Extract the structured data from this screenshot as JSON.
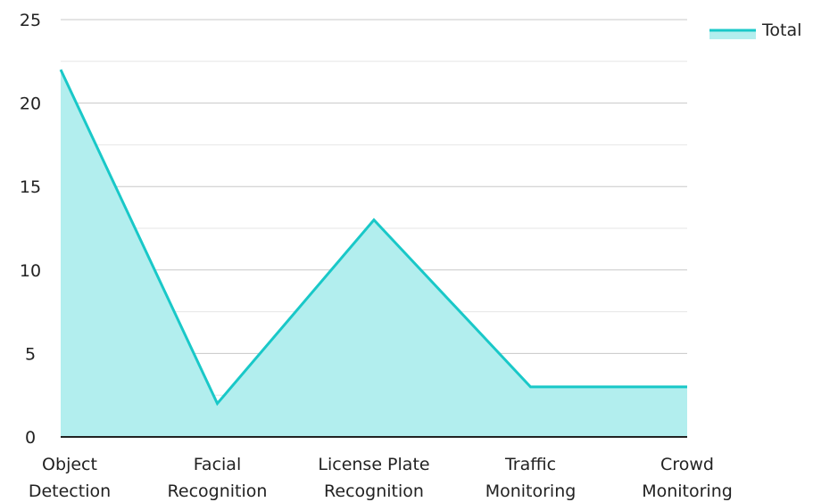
{
  "chart_data": {
    "type": "area",
    "categories": [
      [
        "Object",
        "Detection"
      ],
      [
        "Facial",
        "Recognition"
      ],
      [
        "License Plate",
        "Recognition"
      ],
      [
        "Traffic",
        "Monitoring"
      ],
      [
        "Crowd",
        "Monitoring"
      ]
    ],
    "series": [
      {
        "name": "Total",
        "values": [
          22,
          2,
          13,
          3,
          3
        ]
      }
    ],
    "y_ticks": [
      "0",
      "5",
      "10",
      "15",
      "20",
      "25"
    ],
    "ylim": [
      0,
      25
    ],
    "grid": true,
    "legend": "top-right",
    "colors": {
      "line": "#19C8C8",
      "fill": "#B2EEEE",
      "grid_major": "#C8C8C8",
      "grid_minor": "#E6E6E6",
      "axis": "#222222"
    }
  }
}
